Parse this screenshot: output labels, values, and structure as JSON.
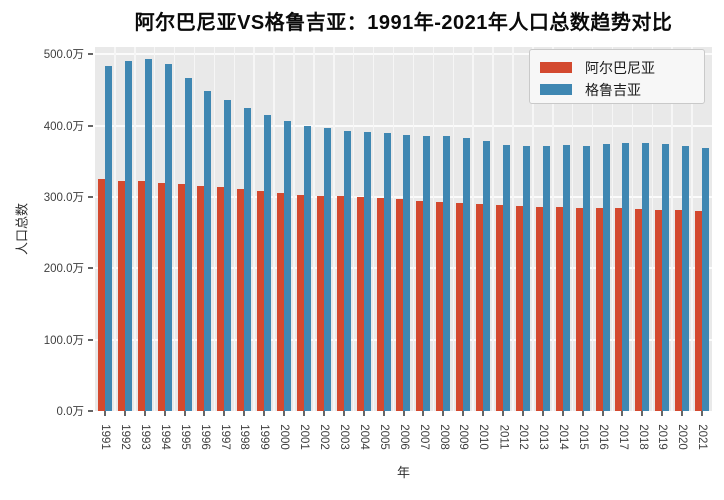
{
  "title": "阿尔巴尼亚VS格鲁吉亚：1991年-2021年人口总数趋势对比",
  "chart_data": {
    "type": "bar",
    "title": "阿尔巴尼亚VS格鲁吉亚：1991年-2021年人口总数趋势对比",
    "xlabel": "年",
    "ylabel": "人口总数",
    "unit": "万",
    "grid": true,
    "legend_position": "upper right",
    "plot_bg": "#e9e9e9",
    "grid_color": "#ffffff",
    "ylim": [
      0,
      510
    ],
    "y_ticks": [
      0,
      100,
      200,
      300,
      400,
      500
    ],
    "y_tick_labels": [
      "0.0万",
      "100.0万",
      "200.0万",
      "300.0万",
      "400.0万",
      "500.0万"
    ],
    "categories": [
      "1991",
      "1992",
      "1993",
      "1994",
      "1995",
      "1996",
      "1997",
      "1998",
      "1999",
      "2000",
      "2001",
      "2002",
      "2003",
      "2004",
      "2005",
      "2006",
      "2007",
      "2008",
      "2009",
      "2010",
      "2011",
      "2012",
      "2013",
      "2014",
      "2015",
      "2016",
      "2017",
      "2018",
      "2019",
      "2020",
      "2021"
    ],
    "series": [
      {
        "name": "阿尔巴尼亚",
        "color": "#d3492f",
        "values": [
          325,
          323,
          322,
          320,
          318,
          316,
          314,
          311,
          308,
          305,
          303,
          302,
          301,
          300,
          299,
          297,
          295,
          293,
          291,
          290,
          288,
          287,
          286,
          286,
          285,
          285,
          284,
          283,
          282,
          282,
          280
        ]
      },
      {
        "name": "格鲁吉亚",
        "color": "#3f87b2",
        "values": [
          484,
          490,
          493,
          486,
          466,
          449,
          436,
          425,
          415,
          407,
          400,
          396,
          392,
          391,
          390,
          387,
          386,
          385,
          382,
          378,
          373,
          372,
          372,
          373,
          372,
          374,
          375,
          375,
          374,
          371,
          369
        ]
      }
    ]
  }
}
